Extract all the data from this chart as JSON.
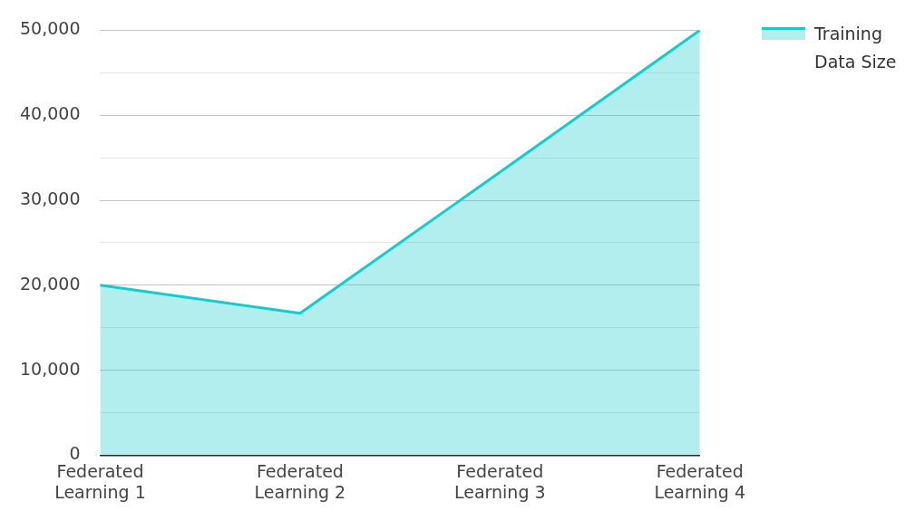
{
  "chart_data": {
    "type": "area",
    "categories": [
      "Federated Learning 1",
      "Federated Learning 2",
      "Federated Learning 3",
      "Federated Learning 4"
    ],
    "series": [
      {
        "name": "Training Data Size",
        "color": "#14cccc",
        "values": [
          20000,
          16700,
          33300,
          50000
        ]
      }
    ],
    "ylim": [
      0,
      50000
    ],
    "yticks": [
      0,
      {
        "value": 5000,
        "label": null
      },
      {
        "value": 10000,
        "label": "10,000"
      },
      {
        "value": 15000,
        "label": null
      },
      {
        "value": 20000,
        "label": "20,000"
      },
      {
        "value": 25000,
        "label": null
      },
      {
        "value": 30000,
        "label": "30,000"
      },
      {
        "value": 35000,
        "label": null
      },
      {
        "value": 40000,
        "label": "40,000"
      },
      {
        "value": 45000,
        "label": null
      },
      {
        "value": 50000,
        "label": "50,000"
      }
    ],
    "grid": "y",
    "legend": "top right"
  }
}
